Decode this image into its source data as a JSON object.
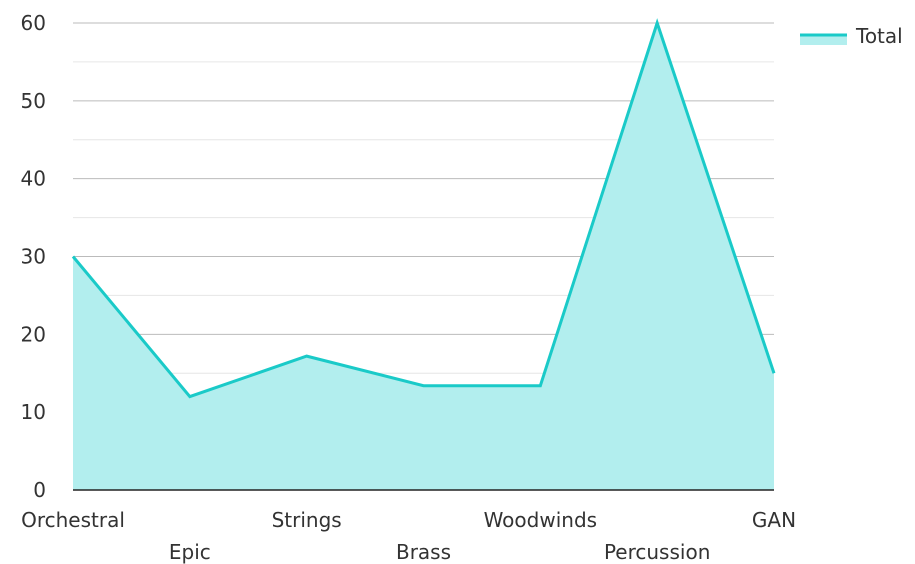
{
  "chart_data": {
    "type": "area",
    "categories": [
      "Orchestral",
      "Epic",
      "Strings",
      "Brass",
      "Woodwinds",
      "Percussion",
      "GAN"
    ],
    "series": [
      {
        "name": "Total",
        "values": [
          30,
          12,
          17.2,
          13.4,
          13.4,
          60,
          15
        ]
      }
    ],
    "ylim": [
      0,
      60
    ],
    "yticks": [
      0,
      10,
      20,
      30,
      40,
      50,
      60
    ],
    "grid": true,
    "legend": "top-right",
    "colors": {
      "line": "#1ACAC8",
      "fill": "#B2EEEE",
      "grid_major": "#BBBBBB",
      "grid_minor": "#E6E6E6",
      "axis": "#222222",
      "text": "#333333"
    }
  }
}
